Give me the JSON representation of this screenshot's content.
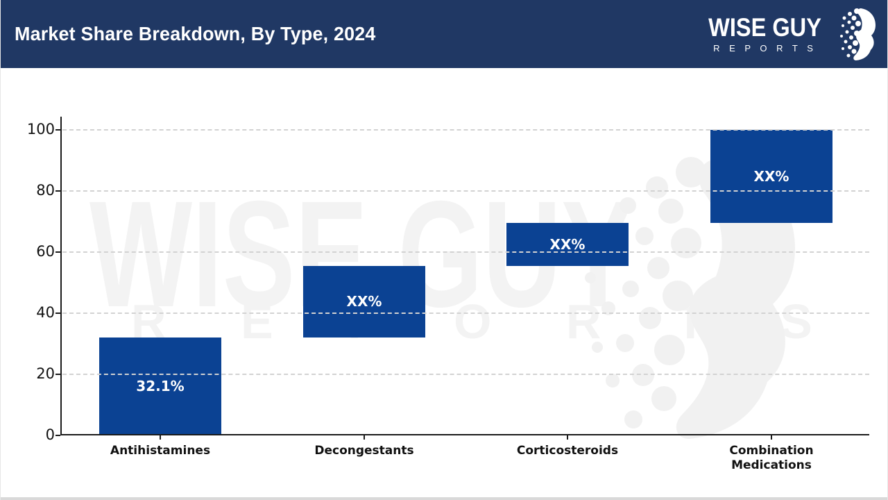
{
  "header": {
    "title": "Market Share Breakdown, By Type, 2024",
    "logo_line1": "WISE GUY",
    "logo_line2": "R E P O R T S",
    "bg_color": "#203864"
  },
  "watermark": {
    "line1": "WISE GUY",
    "line2": "R E P O R T S"
  },
  "chart_data": {
    "type": "bar",
    "subtype": "waterfall",
    "title": "Market Share Breakdown, By Type, 2024",
    "xlabel": "",
    "ylabel": "",
    "ylim": [
      0,
      100
    ],
    "yticks": [
      0,
      20,
      40,
      60,
      80,
      100
    ],
    "grid": "horizontal dashed, drawn over bars",
    "legend": "none",
    "bar_color": "#0b4293",
    "value_label_color": "#ffffff",
    "categories": [
      "Antihistamines",
      "Decongestants",
      "Corticosteroids",
      "Combination Medications"
    ],
    "segments": [
      {
        "category": "Antihistamines",
        "start": 0,
        "end": 32.1,
        "label": "32.1%"
      },
      {
        "category": "Decongestants",
        "start": 32.1,
        "end": 55.5,
        "label": "XX%"
      },
      {
        "category": "Corticosteroids",
        "start": 55.5,
        "end": 69.5,
        "label": "XX%"
      },
      {
        "category": "Combination Medications",
        "start": 69.5,
        "end": 100,
        "label": "XX%"
      }
    ]
  }
}
